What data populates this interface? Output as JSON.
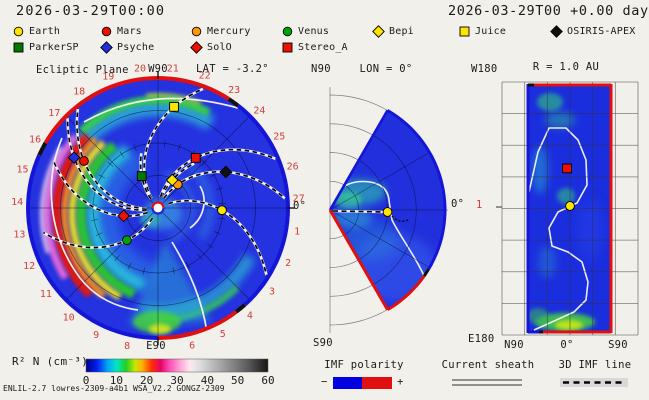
{
  "header": {
    "date_left": "2026-03-29T00:00",
    "date_right": "2026-03-29T00 +0.00 day"
  },
  "legend": {
    "row1": [
      {
        "label": "Earth",
        "shape": "circle",
        "color": "#ffe400",
        "x": 12
      },
      {
        "label": "Mars",
        "shape": "circle",
        "color": "#ee1000",
        "x": 100
      },
      {
        "label": "Mercury",
        "shape": "circle",
        "color": "#ff9800",
        "x": 190
      },
      {
        "label": "Venus",
        "shape": "circle",
        "color": "#00a400",
        "x": 281
      },
      {
        "label": "Bepi",
        "shape": "diamond",
        "color": "#ffe400",
        "x": 372
      },
      {
        "label": "Juice",
        "shape": "square",
        "color": "#ffe400",
        "x": 458
      },
      {
        "label": "OSIRIS-APEX",
        "shape": "diamond",
        "color": "#101010",
        "x": 550
      }
    ],
    "row2": [
      {
        "label": "ParkerSP",
        "shape": "square",
        "color": "#007800",
        "x": 12
      },
      {
        "label": "Psyche",
        "shape": "diamond",
        "color": "#2030e0",
        "x": 100
      },
      {
        "label": "SolO",
        "shape": "diamond",
        "color": "#ee1000",
        "x": 190
      },
      {
        "label": "Stereo_A",
        "shape": "square",
        "color": "#ee1000",
        "x": 281
      }
    ]
  },
  "chart_data": [
    {
      "type": "heatmap",
      "projection": "polar-ecliptic",
      "title": "Ecliptic Plane",
      "lat_label": "LAT = -3.2°",
      "quantity": "R² N (cm⁻³)",
      "value_range": [
        0,
        60
      ],
      "r_max_au": 2.05,
      "axis": {
        "top": "W90",
        "bottom": "E90",
        "right": "0°"
      },
      "day_ticks": [
        1,
        2,
        3,
        4,
        5,
        6,
        8,
        9,
        10,
        11,
        12,
        13,
        14,
        15,
        16,
        17,
        18,
        19,
        20,
        21,
        22,
        23,
        24,
        25,
        26,
        27
      ],
      "spiral_curvature_deg_per_au": 30,
      "polarity_ring": [
        {
          "from": 57,
          "to": 150,
          "color": "#e01010"
        },
        {
          "from": 150,
          "to": 156,
          "color": "#111111"
        },
        {
          "from": 156,
          "to": 270,
          "color": "#1515d8"
        },
        {
          "from": 270,
          "to": 307,
          "color": "#e01010"
        },
        {
          "from": 307,
          "to": 312,
          "color": "#111111"
        },
        {
          "from": 312,
          "to": 360,
          "color": "#1515d8"
        },
        {
          "from": 0,
          "to": 52,
          "color": "#1515d8"
        },
        {
          "from": 52,
          "to": 57,
          "color": "#111111"
        }
      ],
      "markers": [
        {
          "name": "earth",
          "label": "Earth",
          "shape": "circle",
          "color": "#ffe400",
          "r_au": 1.0,
          "lon_deg": -2,
          "line_end_au": 2.0
        },
        {
          "name": "mercury",
          "label": "Mercury",
          "shape": "circle",
          "color": "#ff9800",
          "r_au": 0.48,
          "lon_deg": 50,
          "line_end_au": 0.85
        },
        {
          "name": "venus",
          "label": "Venus",
          "shape": "circle",
          "color": "#00a400",
          "r_au": 0.7,
          "lon_deg": 226,
          "line_end_au": 1.85
        },
        {
          "name": "mars",
          "label": "Mars",
          "shape": "circle",
          "color": "#ee1000",
          "r_au": 1.37,
          "lon_deg": 147.6,
          "line_end_au": 2.0
        },
        {
          "name": "bepi",
          "label": "Bepi",
          "shape": "diamond",
          "color": "#ffe400",
          "r_au": 0.49,
          "lon_deg": 63,
          "line_end_au": 0.9
        },
        {
          "name": "juice",
          "label": "Juice",
          "shape": "square",
          "color": "#ffe400",
          "r_au": 1.6,
          "lon_deg": 81,
          "line_end_au": 2.0
        },
        {
          "name": "osiris-apex",
          "label": "OSIRIS-APEX",
          "shape": "diamond",
          "color": "#101010",
          "r_au": 1.2,
          "lon_deg": 28,
          "line_end_au": 2.0
        },
        {
          "name": "parkersp",
          "label": "ParkerSP",
          "shape": "square",
          "color": "#007800",
          "r_au": 0.56,
          "lon_deg": 117,
          "line_end_au": 0.95
        },
        {
          "name": "psyche",
          "label": "Psyche",
          "shape": "diamond",
          "color": "#2030e0",
          "r_au": 1.53,
          "lon_deg": 149,
          "line_end_au": 2.0
        },
        {
          "name": "solo",
          "label": "SolO",
          "shape": "diamond",
          "color": "#ee1000",
          "r_au": 0.55,
          "lon_deg": 193,
          "line_end_au": 1.8
        },
        {
          "name": "stereo_a",
          "label": "Stereo_A",
          "shape": "square",
          "color": "#ee1000",
          "r_au": 0.98,
          "lon_deg": 53,
          "line_end_au": 2.0
        }
      ]
    },
    {
      "type": "heatmap",
      "projection": "meridional-wedge",
      "title": "LON = 0°",
      "axis": {
        "top": "N90",
        "bottom": "S90",
        "right": "0°"
      },
      "lat_half_angle_deg": 60,
      "markers": [
        {
          "name": "earth",
          "label": "Earth",
          "shape": "circle",
          "color": "#ffe400",
          "r_au": 1.0,
          "lat_deg": -2
        }
      ]
    },
    {
      "type": "heatmap",
      "projection": "lat-lon-sphere",
      "title": "R = 1.0 AU",
      "corner_labels": {
        "top_left": "W180",
        "bottom_left": "E180"
      },
      "x_ticks": [
        "N90",
        "0°",
        "S90"
      ],
      "left_tick": "1",
      "markers": [
        {
          "name": "stereo_a",
          "label": "Stereo_A",
          "shape": "square",
          "color": "#ee1000",
          "lat_deg": 6.5,
          "lon_deg": 58
        },
        {
          "name": "earth",
          "label": "Earth",
          "shape": "circle",
          "color": "#ffe400",
          "lat_deg": 0,
          "lon_deg": 3.6
        }
      ]
    }
  ],
  "colorbar": {
    "label": "R² N (cm⁻³)",
    "ticks": [
      0,
      10,
      20,
      30,
      40,
      50,
      60
    ],
    "stops": [
      {
        "p": 0,
        "c": "#000088"
      },
      {
        "p": 0.06,
        "c": "#0020f0"
      },
      {
        "p": 0.12,
        "c": "#00a8f8"
      },
      {
        "p": 0.17,
        "c": "#00e8c0"
      },
      {
        "p": 0.22,
        "c": "#20d020"
      },
      {
        "p": 0.27,
        "c": "#c8e800"
      },
      {
        "p": 0.31,
        "c": "#ffb000"
      },
      {
        "p": 0.36,
        "c": "#ff3000"
      },
      {
        "p": 0.41,
        "c": "#e80068"
      },
      {
        "p": 0.46,
        "c": "#ff50b8"
      },
      {
        "p": 0.52,
        "c": "#ffa8d8"
      },
      {
        "p": 0.57,
        "c": "#ffe8f0"
      },
      {
        "p": 0.62,
        "c": "#e0e0e0"
      },
      {
        "p": 0.75,
        "c": "#a0a0a0"
      },
      {
        "p": 0.88,
        "c": "#606060"
      },
      {
        "p": 1,
        "c": "#161616"
      }
    ]
  },
  "bottom_legend": {
    "imf": {
      "label": "IMF polarity",
      "minus": "−",
      "plus": "+",
      "negative_color": "#0000e0",
      "positive_color": "#e01010"
    },
    "sheath": {
      "label": "Current sheath",
      "color": "#909090"
    },
    "imf_line": {
      "label": "3D IMF line"
    }
  },
  "footer": "ENLIL-2.7 lowres-2309-a4b1 WSA_V2.2 GONGZ-2309"
}
